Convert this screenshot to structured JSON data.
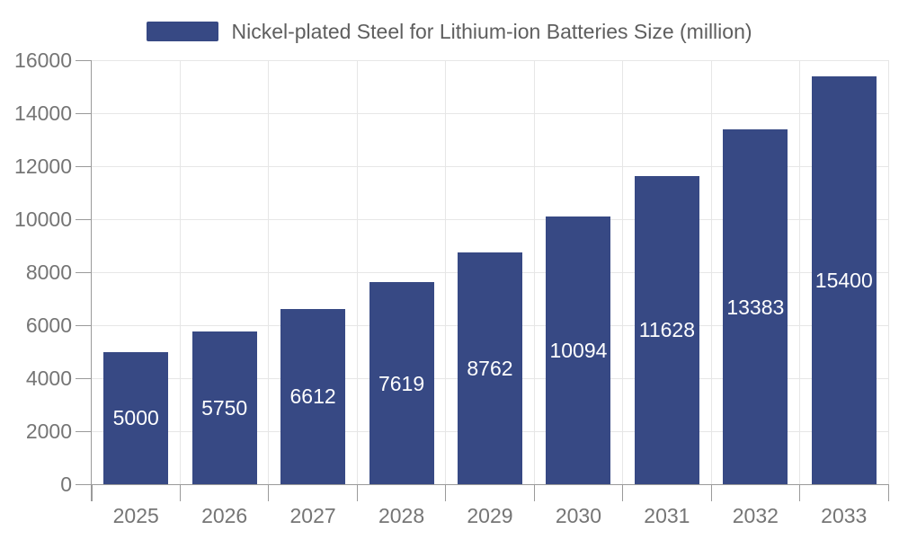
{
  "chart_data": {
    "type": "bar",
    "title": "Nickel-plated Steel for Lithium-ion Batteries Size (million)",
    "categories": [
      "2025",
      "2026",
      "2027",
      "2028",
      "2029",
      "2030",
      "2031",
      "2032",
      "2033"
    ],
    "values": [
      5000,
      5750,
      6612,
      7619,
      8762,
      10094,
      11628,
      13383,
      15400
    ],
    "xlabel": "",
    "ylabel": "",
    "ylim": [
      0,
      16000
    ],
    "yticks": [
      0,
      2000,
      4000,
      6000,
      8000,
      10000,
      12000,
      14000,
      16000
    ],
    "grid": true,
    "legend_position": "top-center",
    "value_labels": "inside-middle",
    "colors": {
      "bar": "#374984",
      "value_label": "#ffffff",
      "grid_line": "#e6e6e6",
      "axis_line": "#9a9a9a",
      "tick_label": "#757575",
      "legend_text": "#5e5e5e",
      "background": "#ffffff"
    }
  }
}
